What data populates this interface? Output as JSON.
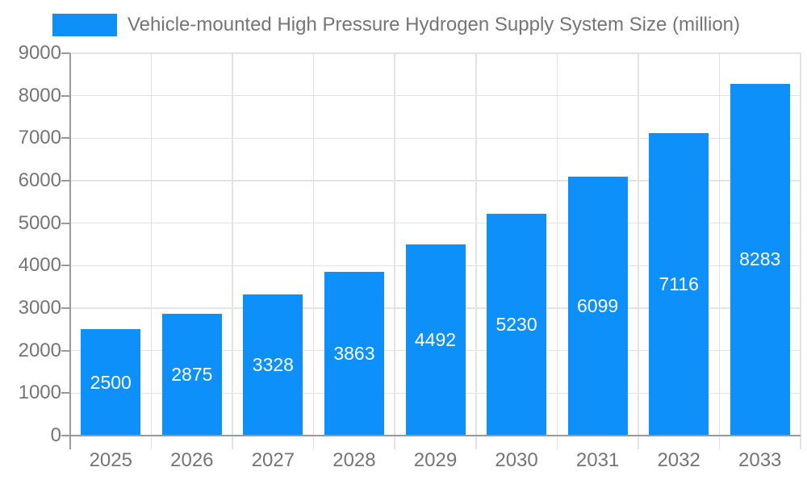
{
  "chart_data": {
    "type": "bar",
    "title": "Vehicle-mounted High Pressure Hydrogen Supply System Size (million)",
    "categories": [
      "2025",
      "2026",
      "2027",
      "2028",
      "2029",
      "2030",
      "2031",
      "2032",
      "2033"
    ],
    "values": [
      2500,
      2875,
      3328,
      3863,
      4492,
      5230,
      6099,
      7116,
      8283
    ],
    "xlabel": "",
    "ylabel": "",
    "ylim": [
      0,
      9000
    ],
    "ytick_step": 1000,
    "grid": true,
    "legend_position": "top-left",
    "colors": {
      "bar": "#0d90f9",
      "bar_label": "#ffffff",
      "axis_line": "#999999",
      "gridline": "#e3e3e3",
      "text": "#757575"
    }
  }
}
